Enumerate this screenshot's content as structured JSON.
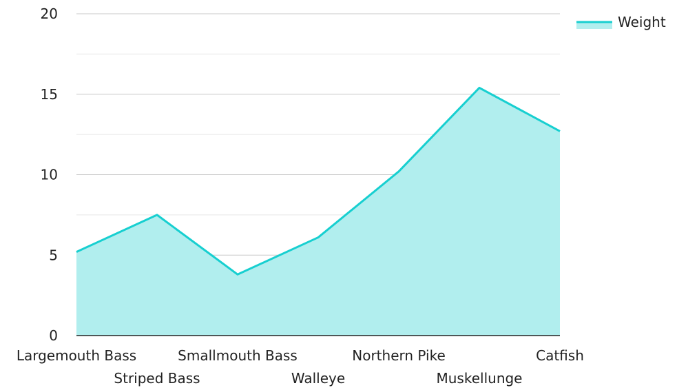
{
  "chart_data": {
    "type": "area",
    "categories": [
      "Largemouth Bass",
      "Striped Bass",
      "Smallmouth Bass",
      "Walleye",
      "Northern Pike",
      "Muskellunge",
      "Catfish"
    ],
    "series": [
      {
        "name": "Weight",
        "values": [
          5.2,
          7.5,
          3.8,
          6.1,
          10.2,
          15.4,
          12.7
        ]
      }
    ],
    "ylim": [
      0,
      20
    ],
    "yticks": [
      0,
      5,
      10,
      15,
      20
    ],
    "grid": true,
    "legend_position": "top-right",
    "colors": {
      "line": "#17cfd0",
      "fill": "#b1eeee",
      "grid_major": "#c8c8c8",
      "grid_minor": "#e6e6e6",
      "axis": "#222222",
      "text": "#222222"
    }
  }
}
